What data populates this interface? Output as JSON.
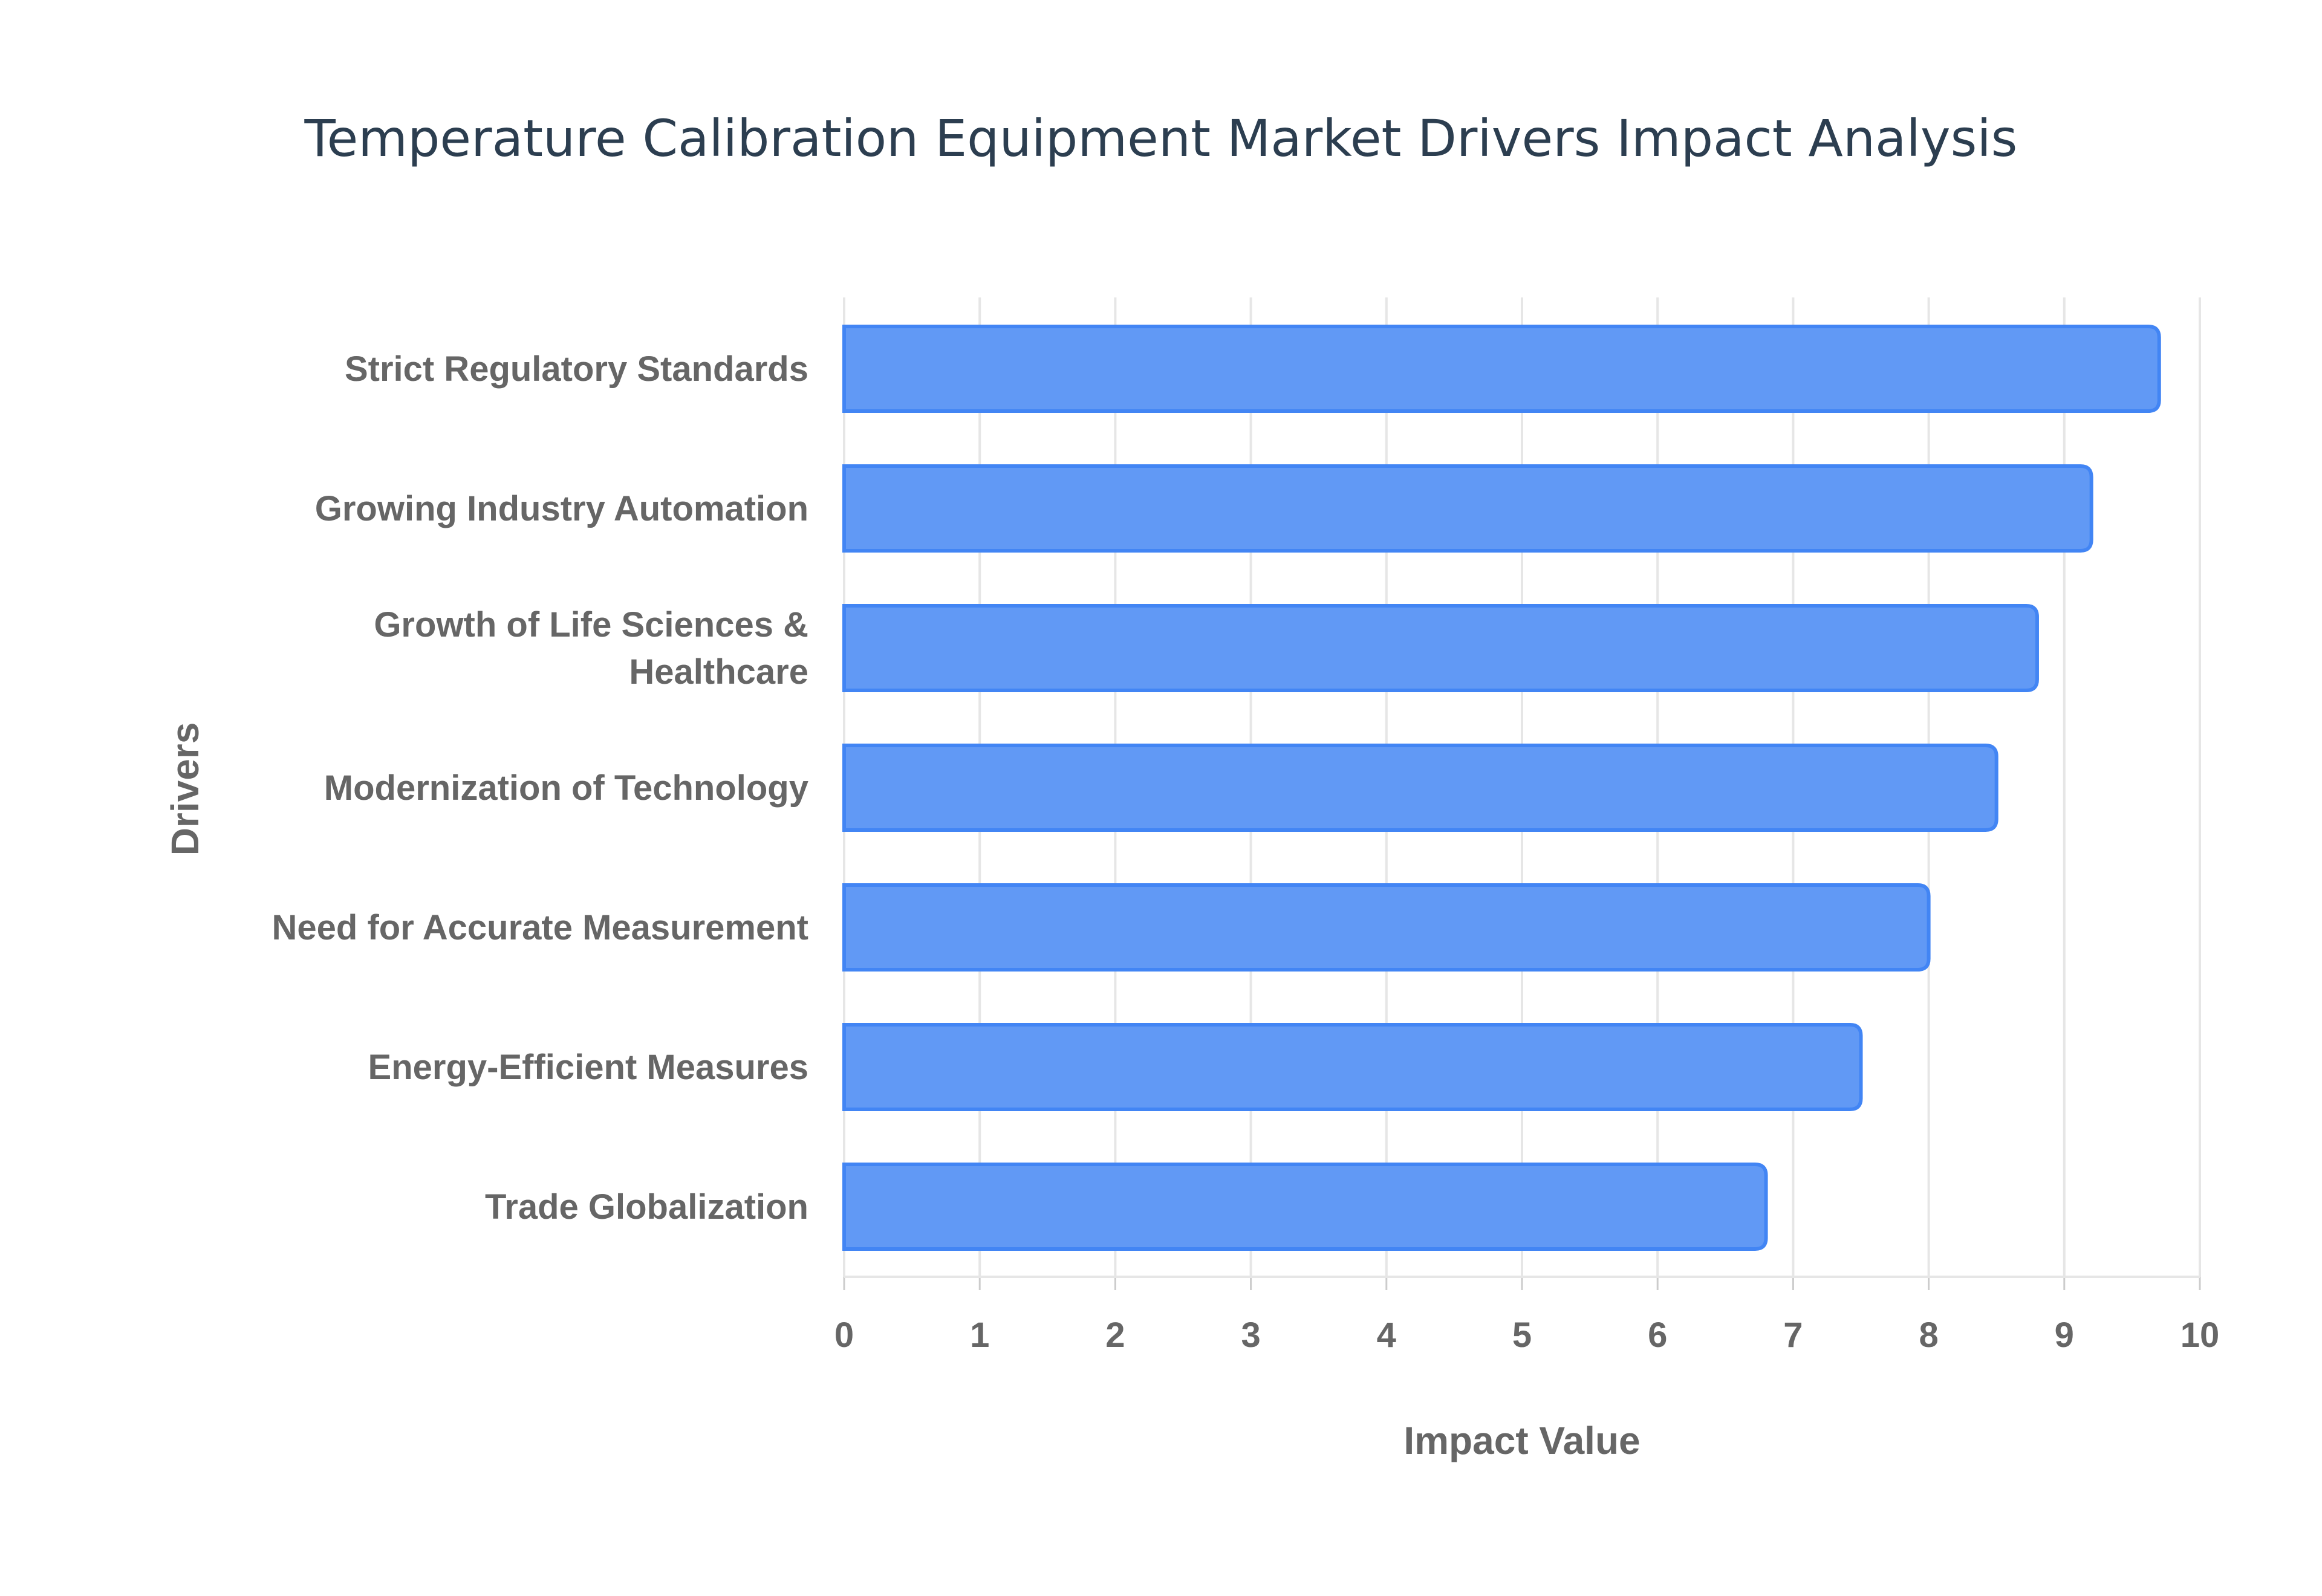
{
  "chart_data": {
    "type": "bar",
    "orientation": "horizontal",
    "title": "Temperature Calibration Equipment Market Drivers Impact Analysis",
    "xlabel": "Impact Value",
    "ylabel": "Drivers",
    "xlim": [
      0,
      10
    ],
    "xticks": [
      "0",
      "1",
      "2",
      "3",
      "4",
      "5",
      "6",
      "7",
      "8",
      "9",
      "10"
    ],
    "grid": true,
    "categories": [
      [
        "Strict Regulatory Standards"
      ],
      [
        "Growing Industry Automation"
      ],
      [
        "Growth of Life Sciences &",
        "Healthcare"
      ],
      [
        "Modernization of Technology"
      ],
      [
        "Need for Accurate Measurement"
      ],
      [
        "Energy-Efficient Measures"
      ],
      [
        "Trade Globalization"
      ]
    ],
    "values": [
      9.7,
      9.2,
      8.8,
      8.5,
      8.0,
      7.5,
      6.8
    ],
    "bar_color": "#4285f4",
    "bar_fill": "#6199f5"
  }
}
